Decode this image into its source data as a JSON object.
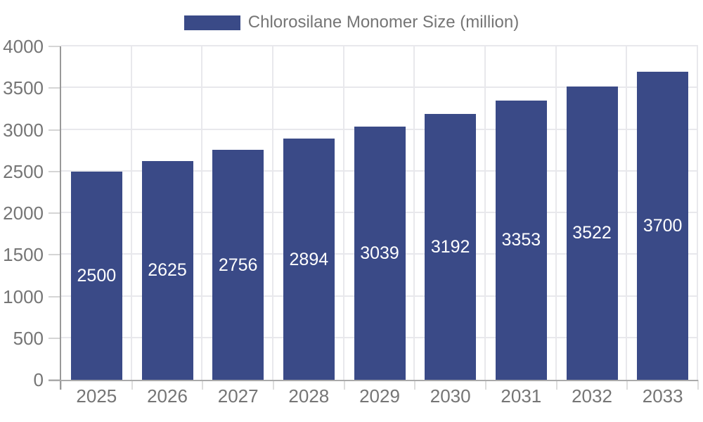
{
  "chart_data": {
    "type": "bar",
    "title": "",
    "legend": "Chlorosilane Monomer Size (million)",
    "categories": [
      "2025",
      "2026",
      "2027",
      "2028",
      "2029",
      "2030",
      "2031",
      "2032",
      "2033"
    ],
    "series": [
      {
        "name": "Chlorosilane Monomer Size (million)",
        "values": [
          2500,
          2625,
          2756,
          2894,
          3039,
          3192,
          3353,
          3522,
          3700
        ]
      }
    ],
    "xlabel": "",
    "ylabel": "",
    "ylim": [
      0,
      4000
    ],
    "yticks": [
      0,
      500,
      1000,
      1500,
      2000,
      2500,
      3000,
      3500,
      4000
    ],
    "grid": true,
    "legend_position": "top",
    "bar_labels_visible": true
  },
  "colors": {
    "bar": "#3a4a87",
    "bar_label": "#ffffff",
    "axis_line": "#999999",
    "grid_line": "#e8e8ec",
    "tick_line": "#d5d5d5",
    "label_text": "#757575"
  }
}
